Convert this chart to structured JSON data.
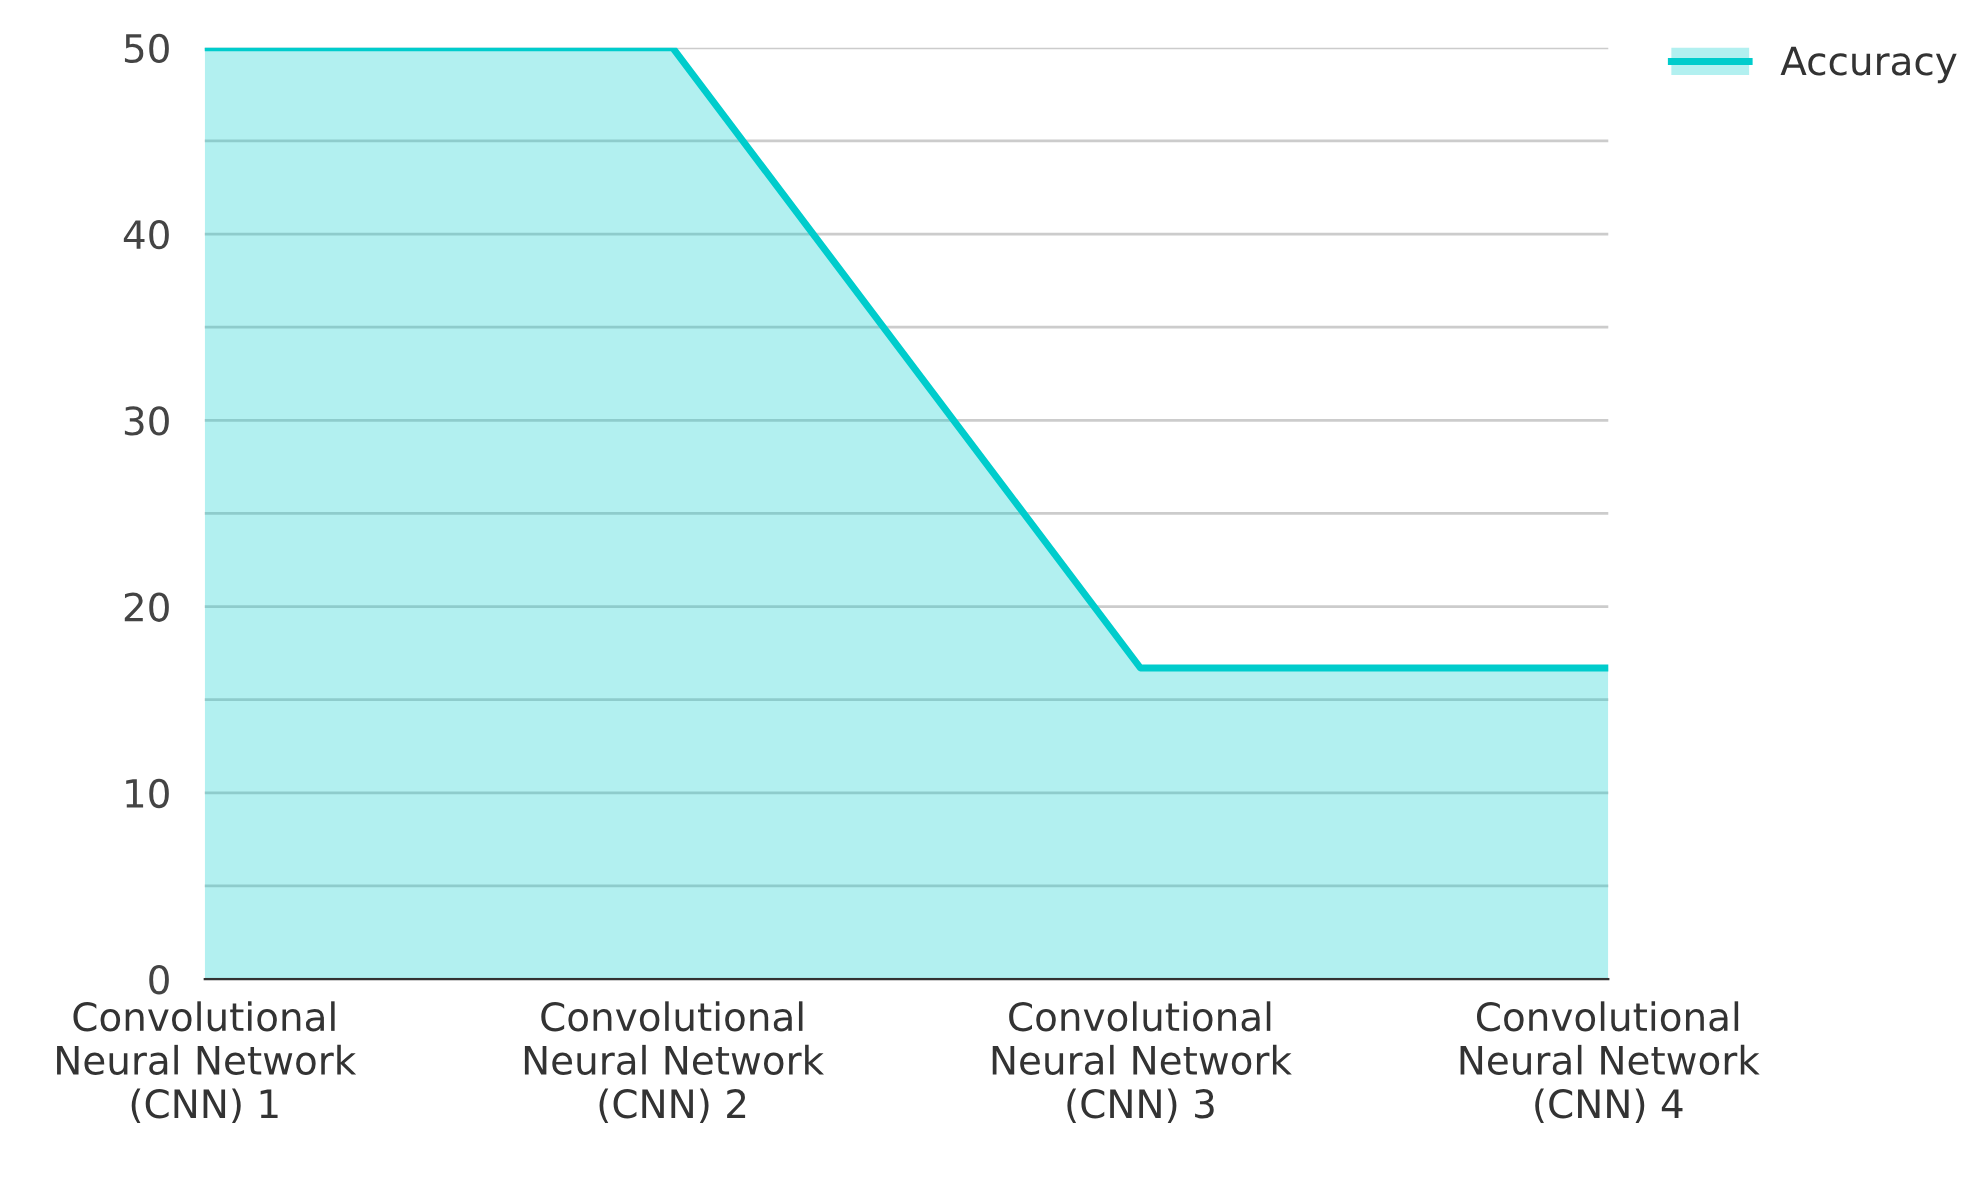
{
  "chart_data": {
    "type": "area",
    "categories": [
      "Convolutional\nNeural Network\n(CNN) 1",
      "Convolutional\nNeural Network\n(CNN) 2",
      "Convolutional\nNeural Network\n(CNN) 3",
      "Convolutional\nNeural Network\n(CNN) 4"
    ],
    "series": [
      {
        "name": "Accuracy",
        "color": "#00cccc",
        "values": [
          50,
          50,
          16.7,
          16.7
        ]
      }
    ],
    "ylim": [
      0,
      50
    ],
    "yticks": [
      0,
      {
        "value": 5,
        "label": null
      },
      10,
      {
        "value": 15,
        "label": null
      },
      20,
      {
        "value": 25,
        "label": null
      },
      30,
      {
        "value": 35,
        "label": null
      },
      40,
      {
        "value": 45,
        "label": null
      },
      50
    ],
    "grid": "y",
    "legend": "top right",
    "marker": "none",
    "line_style": "solid"
  }
}
